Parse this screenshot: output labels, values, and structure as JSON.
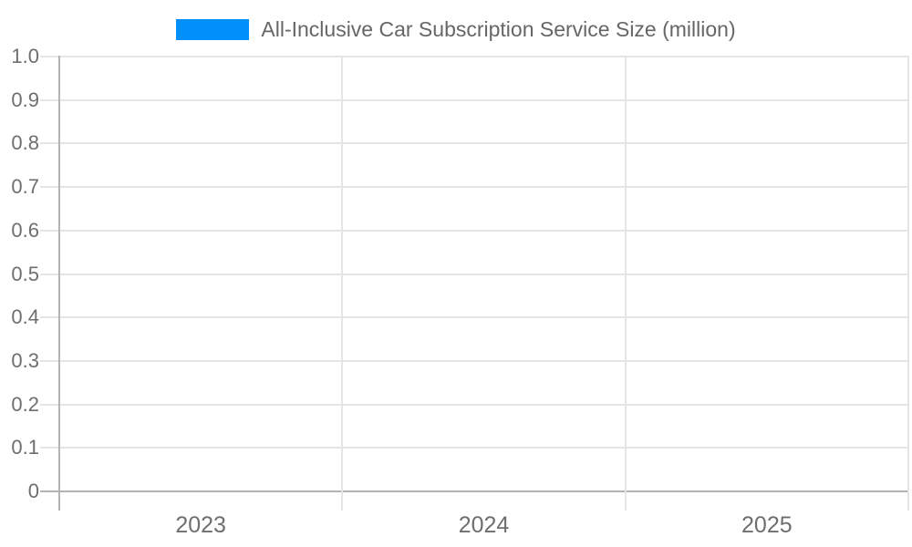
{
  "chart_data": {
    "type": "bar",
    "title": "All-Inclusive Car Subscription Service Size (million)",
    "legend_position": "top",
    "categories": [
      "2023",
      "2024",
      "2025"
    ],
    "series": [
      {
        "name": "All-Inclusive Car Subscription Service Size (million)",
        "values": [
          null,
          null,
          null
        ]
      }
    ],
    "xlabel": "",
    "ylabel": "",
    "ylim": [
      0,
      1.0
    ],
    "ytick_step": 0.1,
    "ytick_labels": [
      "1.0",
      "0.9",
      "0.8",
      "0.7",
      "0.6",
      "0.5",
      "0.4",
      "0.3",
      "0.2",
      "0.1",
      "0"
    ],
    "grid": true,
    "colors": {
      "series": "#008FFB",
      "gridline": "#e5e5e5",
      "zero_line": "#b3b3b3",
      "tick_label": "#6e6e6e",
      "legend_text": "#666666",
      "background": "#ffffff"
    }
  }
}
